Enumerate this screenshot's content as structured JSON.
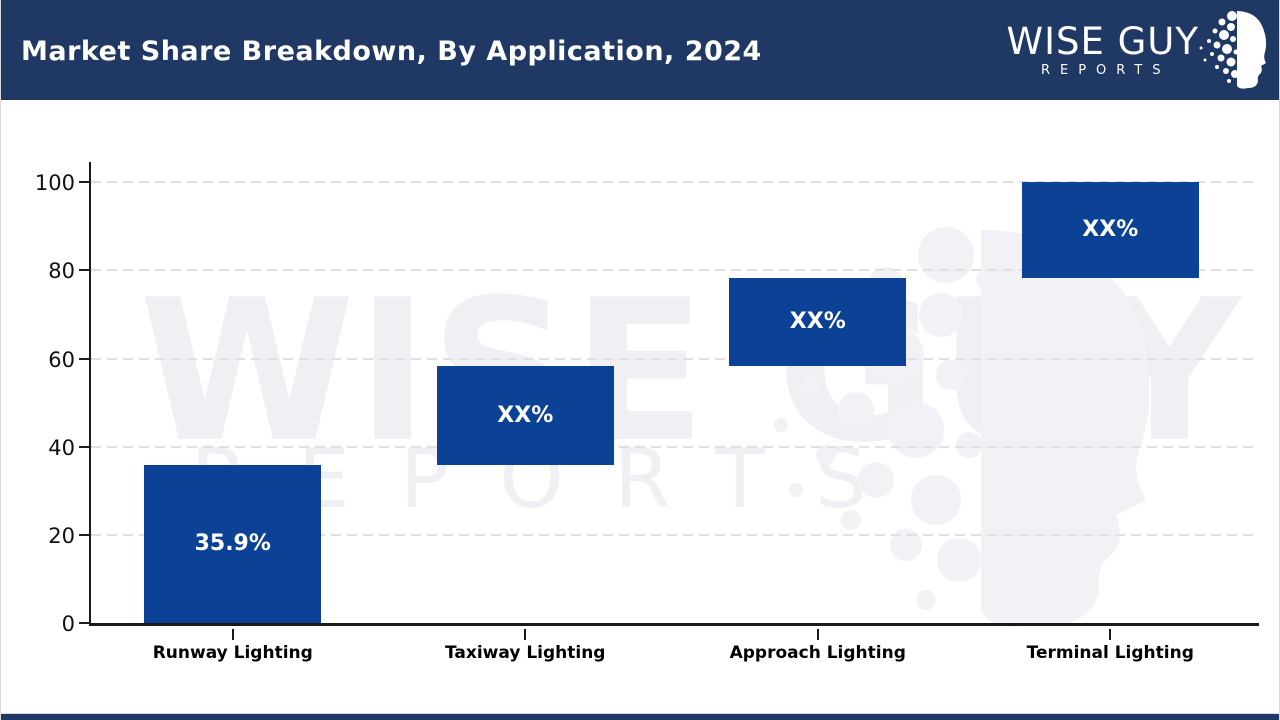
{
  "header": {
    "title": "Market Share Breakdown, By Application, 2024",
    "logo": {
      "line1": "WISE GUY",
      "line2": "REPORTS"
    }
  },
  "watermark": {
    "line1": "WISE GUY",
    "line2": "REPORTS"
  },
  "colors": {
    "header_bg": "#1f3864",
    "bar_fill": "#0b4296",
    "gridline": "#e0e0e4",
    "axis": "#1a1a1a",
    "bar_label_text": "#ffffff",
    "watermark": "#f0f0f4"
  },
  "chart_data": {
    "type": "bar",
    "subtype": "waterfall",
    "title": "Market Share Breakdown, By Application, 2024",
    "xlabel": "",
    "ylabel": "",
    "categories": [
      "Runway Lighting",
      "Taxiway Lighting",
      "Approach Lighting",
      "Terminal Lighting"
    ],
    "bars": [
      {
        "category": "Runway Lighting",
        "start": 0,
        "end": 35.9,
        "label": "35.9%"
      },
      {
        "category": "Taxiway Lighting",
        "start": 35.9,
        "end": 58.4,
        "label": "XX%"
      },
      {
        "category": "Approach Lighting",
        "start": 58.4,
        "end": 78.4,
        "label": "XX%"
      },
      {
        "category": "Terminal Lighting",
        "start": 78.4,
        "end": 100,
        "label": "XX%"
      }
    ],
    "yticks": [
      0,
      20,
      40,
      60,
      80,
      100
    ],
    "ylim": [
      0,
      105.3
    ],
    "grid": "horizontal-dashed",
    "legend": "none"
  }
}
